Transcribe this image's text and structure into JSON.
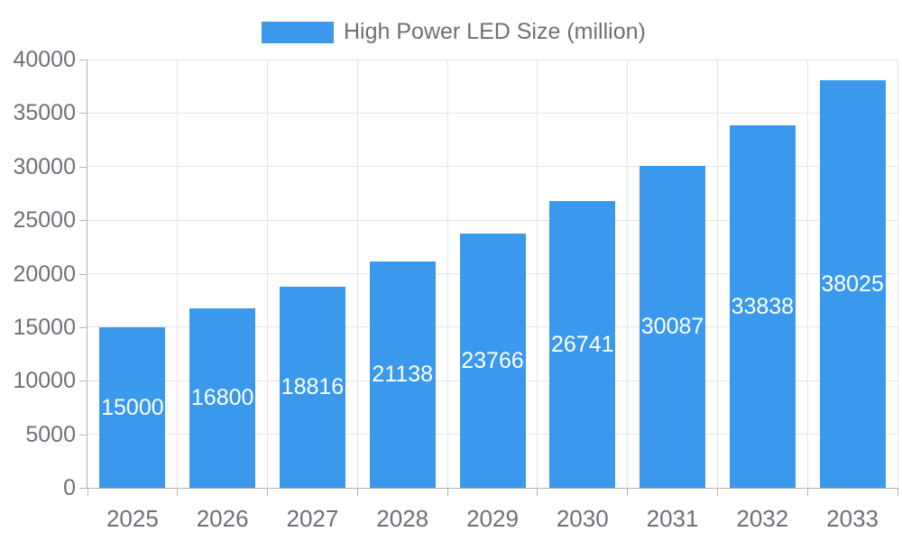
{
  "legend": {
    "label": "High Power LED Size (million)"
  },
  "chart_data": {
    "type": "bar",
    "title": "High Power LED Size (million)",
    "categories": [
      "2025",
      "2026",
      "2027",
      "2028",
      "2029",
      "2030",
      "2031",
      "2032",
      "2033"
    ],
    "values": [
      15000,
      16800,
      18816,
      21138,
      23766,
      26741,
      30087,
      33838,
      38025
    ],
    "value_labels_visible": true,
    "value_label_position": "inside-center",
    "xlabel": "",
    "ylabel": "",
    "ylim": [
      0,
      40000
    ],
    "yticks": [
      0,
      5000,
      10000,
      15000,
      20000,
      25000,
      30000,
      35000,
      40000
    ],
    "grid": "horizontal-and-vertical",
    "legend_position": "top-center"
  },
  "colors": {
    "bar": "#3A99EC",
    "value_label": "#FFFFFF",
    "axis_label": "#6E7079",
    "axis_line": "#AFB2B7",
    "grid_line": "#E3E5EA",
    "background": "#FFFFFF"
  }
}
